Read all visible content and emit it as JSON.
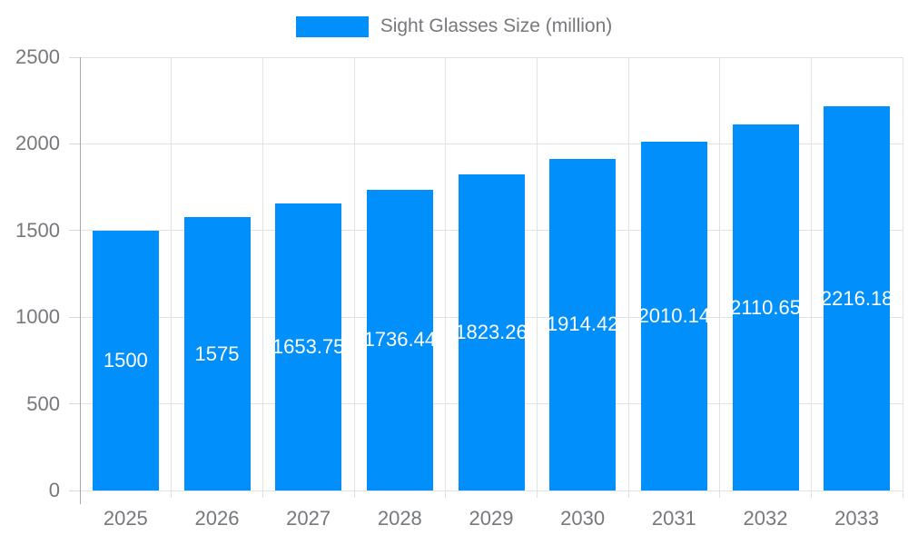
{
  "chart": {
    "legend": {
      "label": "Sight Glasses Size (million)",
      "swatch_color": "#008FFB"
    },
    "colors": {
      "bar": "#008FFB",
      "data_label": "#ffffff",
      "axis_label": "#75787c",
      "legend_text": "#75787c",
      "gridline": "#e2e2e2",
      "axis_border": "#a8a8a8"
    }
  },
  "chart_data": {
    "type": "bar",
    "title": "Sight Glasses Size (million)",
    "series_name": "Sight Glasses Size (million)",
    "categories": [
      "2025",
      "2026",
      "2027",
      "2028",
      "2029",
      "2030",
      "2031",
      "2032",
      "2033"
    ],
    "values": [
      1500,
      1575,
      1653.75,
      1736.44,
      1823.26,
      1914.42,
      2010.14,
      2110.65,
      2216.18
    ],
    "value_labels": [
      "1500",
      "1575",
      "1653.75",
      "1736.44",
      "1823.26",
      "1914.42",
      "2010.14",
      "2110.65",
      "2216.18"
    ],
    "xlabel": "",
    "ylabel": "",
    "ylim": [
      0,
      2500
    ],
    "ytick_step": 500,
    "yticks": [
      "0",
      "500",
      "1000",
      "1500",
      "2000",
      "2500"
    ],
    "grid": true,
    "legend_position": "top",
    "bar_color": "#008FFB"
  }
}
